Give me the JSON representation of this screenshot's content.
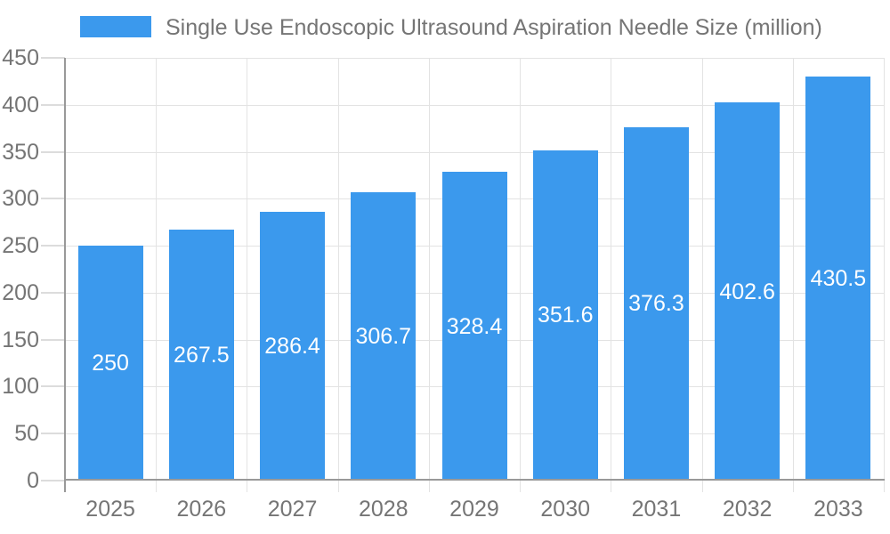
{
  "legend": {
    "label": "Single Use Endoscopic Ultrasound Aspiration Needle Size (million)"
  },
  "colors": {
    "bar": "#3B99ED",
    "grid": "#E3E3E3",
    "tick": "#DCDCDC",
    "axis": "#999999",
    "text": "#757575",
    "value_label": "#FFFFFF",
    "background": "#FFFFFF"
  },
  "chart_data": {
    "type": "bar",
    "title": "Single Use Endoscopic Ultrasound Aspiration Needle Size (million)",
    "categories": [
      "2025",
      "2026",
      "2027",
      "2028",
      "2029",
      "2030",
      "2031",
      "2032",
      "2033"
    ],
    "values": [
      250,
      267.5,
      286.4,
      306.7,
      328.4,
      351.6,
      376.3,
      402.6,
      430.5
    ],
    "bar_labels": [
      "250",
      "267.5",
      "286.4",
      "306.7",
      "328.4",
      "351.6",
      "376.3",
      "402.6",
      "430.5"
    ],
    "xlabel": "",
    "ylabel": "",
    "ylim": [
      0,
      450
    ],
    "ytick_step": 50,
    "grid": true,
    "legend_position": "top-left",
    "value_labels_position": "inside-center"
  }
}
